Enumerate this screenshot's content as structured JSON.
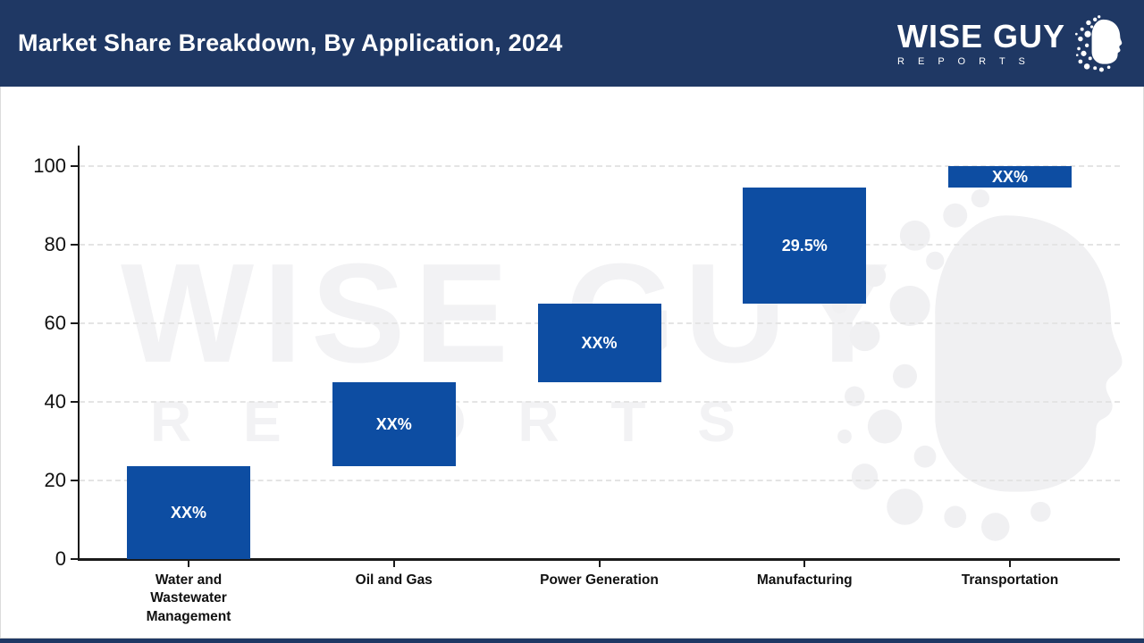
{
  "header": {
    "title": "Market Share Breakdown, By Application, 2024",
    "logo": {
      "name": "WISE GUY",
      "subtitle": "R E P O R T S"
    }
  },
  "watermark": {
    "line1": "WISE GUY",
    "line2": "R E P O R T S"
  },
  "chart_data": {
    "type": "bar",
    "subtype": "floating-segment-waterfall",
    "title": "Market Share Breakdown, By Application, 2024",
    "xlabel": "",
    "ylabel": "",
    "ylim": [
      0,
      105
    ],
    "yticks": [
      0,
      20,
      40,
      60,
      80,
      100
    ],
    "grid": "horizontal-dashed",
    "legend": "none",
    "bar_color": "#0d4da2",
    "bar_label_color": "#ffffff",
    "categories": [
      "Water and Wastewater Management",
      "Oil and Gas",
      "Power Generation",
      "Manufacturing",
      "Transportation"
    ],
    "category_display_lines": [
      [
        "Water and",
        "Wastewater",
        "Management"
      ],
      [
        "Oil and Gas"
      ],
      [
        "Power Generation"
      ],
      [
        "Manufacturing"
      ],
      [
        "Transportation"
      ]
    ],
    "bars": [
      {
        "category": "Water and Wastewater Management",
        "start": 0,
        "end": 23.7,
        "value_label": "XX%"
      },
      {
        "category": "Oil and Gas",
        "start": 23.7,
        "end": 44.9,
        "value_label": "XX%"
      },
      {
        "category": "Power Generation",
        "start": 44.9,
        "end": 65.1,
        "value_label": "XX%"
      },
      {
        "category": "Manufacturing",
        "start": 65.1,
        "end": 94.6,
        "value_label": "29.5%"
      },
      {
        "category": "Transportation",
        "start": 94.6,
        "end": 100,
        "value_label": "XX%"
      }
    ]
  },
  "colors": {
    "header_bg": "#1f3864",
    "footer_bg": "#1f3864",
    "bar": "#0d4da2",
    "grid": "#e4e4e4",
    "axis": "#1a1a1a",
    "watermark": "#f2f2f4"
  }
}
